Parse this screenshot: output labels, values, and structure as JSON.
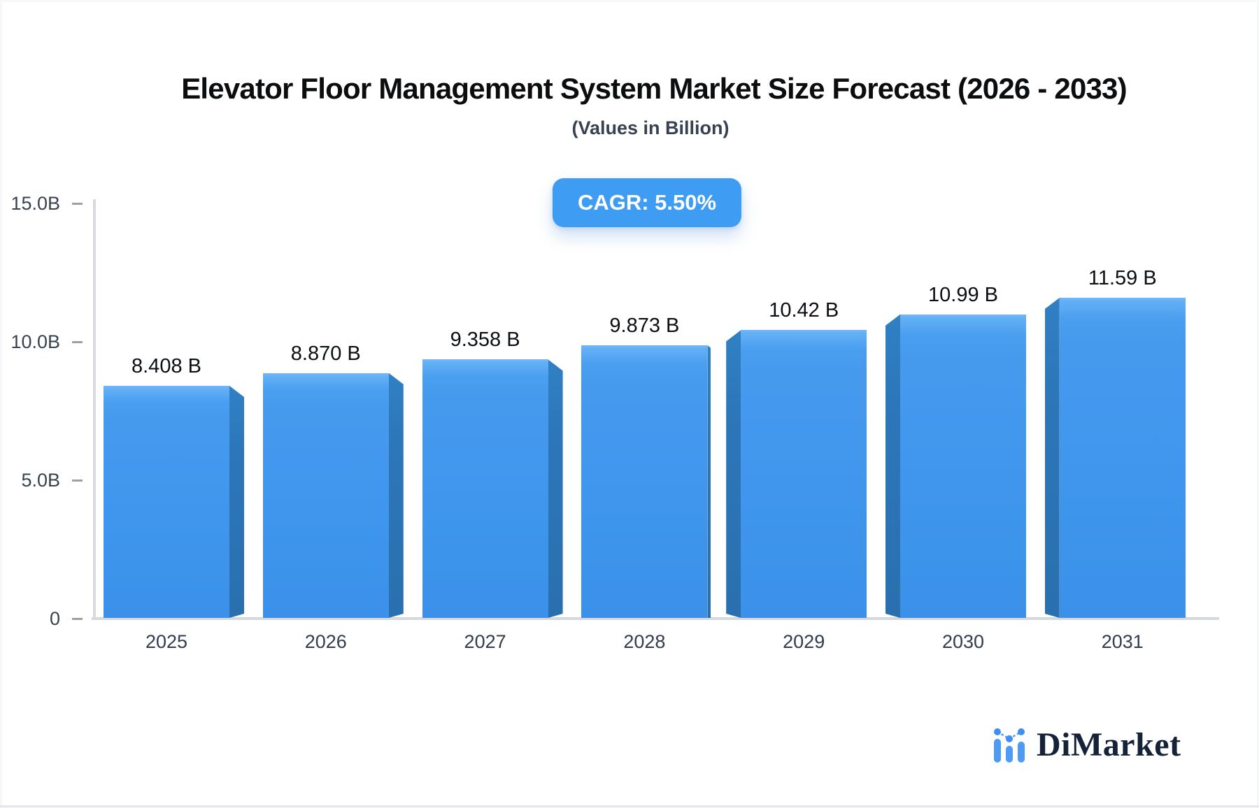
{
  "chart_data": {
    "type": "bar",
    "title": "Elevator Floor Management System Market Size Forecast (2026 - 2033)",
    "subtitle": "(Values in Billion)",
    "cagr_label": "CAGR: 5.50%",
    "categories": [
      "2025",
      "2026",
      "2027",
      "2028",
      "2029",
      "2030",
      "2031"
    ],
    "values": [
      8.408,
      8.87,
      9.358,
      9.873,
      10.42,
      10.99,
      11.59
    ],
    "value_labels": [
      "8.408 B",
      "8.870 B",
      "9.358 B",
      "9.873 B",
      "10.42 B",
      "10.99 B",
      "11.59 B"
    ],
    "ylim": [
      0,
      15
    ],
    "y_ticks": [
      {
        "label": "15.0B",
        "value": 15
      },
      {
        "label": "10.0B",
        "value": 10
      },
      {
        "label": "5.0B",
        "value": 5
      },
      {
        "label": "0",
        "value": 0
      }
    ],
    "grid": "off",
    "legend": "none"
  },
  "branding": {
    "logo_text": "DiMarket",
    "logo_icon": "bar-chart-with-trend-icon"
  },
  "colors": {
    "bar_face_top": "#66b1f6",
    "bar_face_mid": "#4097ed",
    "bar_face_bottom": "#3b91e9",
    "bar_side_top": "#3180c4",
    "bar_side_bottom": "#2a70af",
    "badge_bg": "#3e9df3",
    "badge_text": "#ffffff",
    "axis_line": "#d7dade",
    "tick_color": "#9aa1ab",
    "title_color": "#0c0d0f",
    "logo_icon_color": "#4e9bf5",
    "logo_text_color": "#152238"
  }
}
